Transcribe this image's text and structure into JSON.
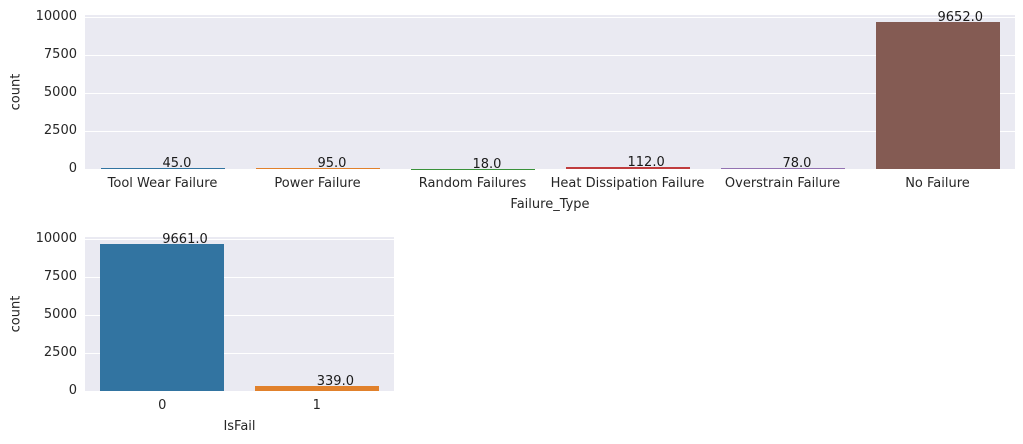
{
  "figure": {
    "background": "#ffffff",
    "plot_background": "#eaeaf2",
    "grid_color": "#ffffff",
    "text_color": "#262626"
  },
  "chart_data": [
    {
      "type": "bar",
      "title": "",
      "xlabel": "Failure_Type",
      "ylabel": "count",
      "categories": [
        "Tool Wear Failure",
        "Power Failure",
        "Random Failures",
        "Heat Dissipation Failure",
        "Overstrain Failure",
        "No Failure"
      ],
      "values": [
        45.0,
        95.0,
        18.0,
        112.0,
        78.0,
        9652.0
      ],
      "value_labels": [
        "45.0",
        "95.0",
        "18.0",
        "112.0",
        "78.0",
        "9652.0"
      ],
      "bar_colors": [
        "#3274a1",
        "#e1812c",
        "#3a923a",
        "#c03d3e",
        "#9372b2",
        "#845b53"
      ],
      "yticks": [
        0,
        2500,
        5000,
        7500,
        10000
      ],
      "ytick_labels": [
        "0",
        "2500",
        "5000",
        "7500",
        "10000"
      ],
      "ylim": [
        0,
        10134
      ],
      "grid": "horizontal",
      "legend": "none"
    },
    {
      "type": "bar",
      "title": "",
      "xlabel": "IsFail",
      "ylabel": "count",
      "categories": [
        "0",
        "1"
      ],
      "values": [
        9661.0,
        339.0
      ],
      "value_labels": [
        "9661.0",
        "339.0"
      ],
      "bar_colors": [
        "#3274a1",
        "#e1812c"
      ],
      "yticks": [
        0,
        2500,
        5000,
        7500,
        10000
      ],
      "ytick_labels": [
        "0",
        "2500",
        "5000",
        "7500",
        "10000"
      ],
      "ylim": [
        0,
        10145
      ],
      "grid": "horizontal",
      "legend": "none"
    }
  ]
}
